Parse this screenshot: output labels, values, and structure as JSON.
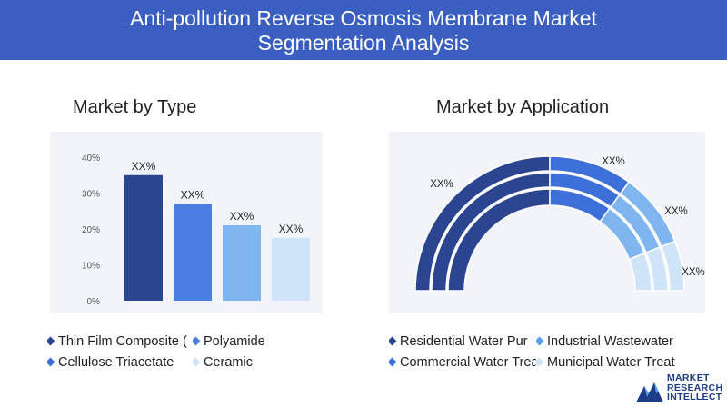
{
  "header": {
    "title_line1": "Anti-pollution Reverse Osmosis Membrane Market",
    "title_line2": "Segmentation Analysis"
  },
  "left": {
    "title": "Market by Type",
    "legend": [
      {
        "label": "Thin Film Composite (",
        "color": "#2b4590"
      },
      {
        "label": "Polyamide",
        "color": "#4a7ee0"
      },
      {
        "label": "Cellulose Triacetate",
        "color": "#3d6fd8"
      },
      {
        "label": "Ceramic",
        "color": "#cfe5f7"
      }
    ]
  },
  "right": {
    "title": "Market by Application",
    "legend": [
      {
        "label": "Residential Water Pur",
        "color": "#2b4590"
      },
      {
        "label": "Industrial Wastewater",
        "color": "#5aa0e8"
      },
      {
        "label": "Commercial Water Trea",
        "color": "#3d6fd8"
      },
      {
        "label": "Municipal Water Treat",
        "color": "#cfe5f7"
      }
    ]
  },
  "chart_data": [
    {
      "type": "bar",
      "categories": [
        "Thin Film Composite (",
        "Polyamide",
        "Cellulose Triacetate",
        "Ceramic"
      ],
      "values": [
        35,
        27,
        21,
        17.5
      ],
      "data_labels": [
        "XX%",
        "XX%",
        "XX%",
        "XX%"
      ],
      "colors": [
        "#2b4590",
        "#4a7ee0",
        "#7fb6f0",
        "#cfe5f7"
      ],
      "yticks": [
        "0%",
        "10%",
        "20%",
        "30%",
        "40%"
      ],
      "ylim": [
        0,
        40
      ]
    },
    {
      "type": "pie",
      "categories": [
        "Residential Water Pur",
        "Commercial Water Trea",
        "Industrial Wastewater",
        "Municipal Water Treat"
      ],
      "values": [
        50,
        20,
        18,
        12
      ],
      "data_labels": [
        "XX%",
        "XX%",
        "XX%",
        "XX%"
      ],
      "colors": [
        "#2b4590",
        "#3d6fd8",
        "#7fb6f0",
        "#cfe5f7"
      ]
    }
  ],
  "logo": {
    "line1": "MARKET",
    "line2": "RESEARCH",
    "line3": "INTELLECT"
  }
}
